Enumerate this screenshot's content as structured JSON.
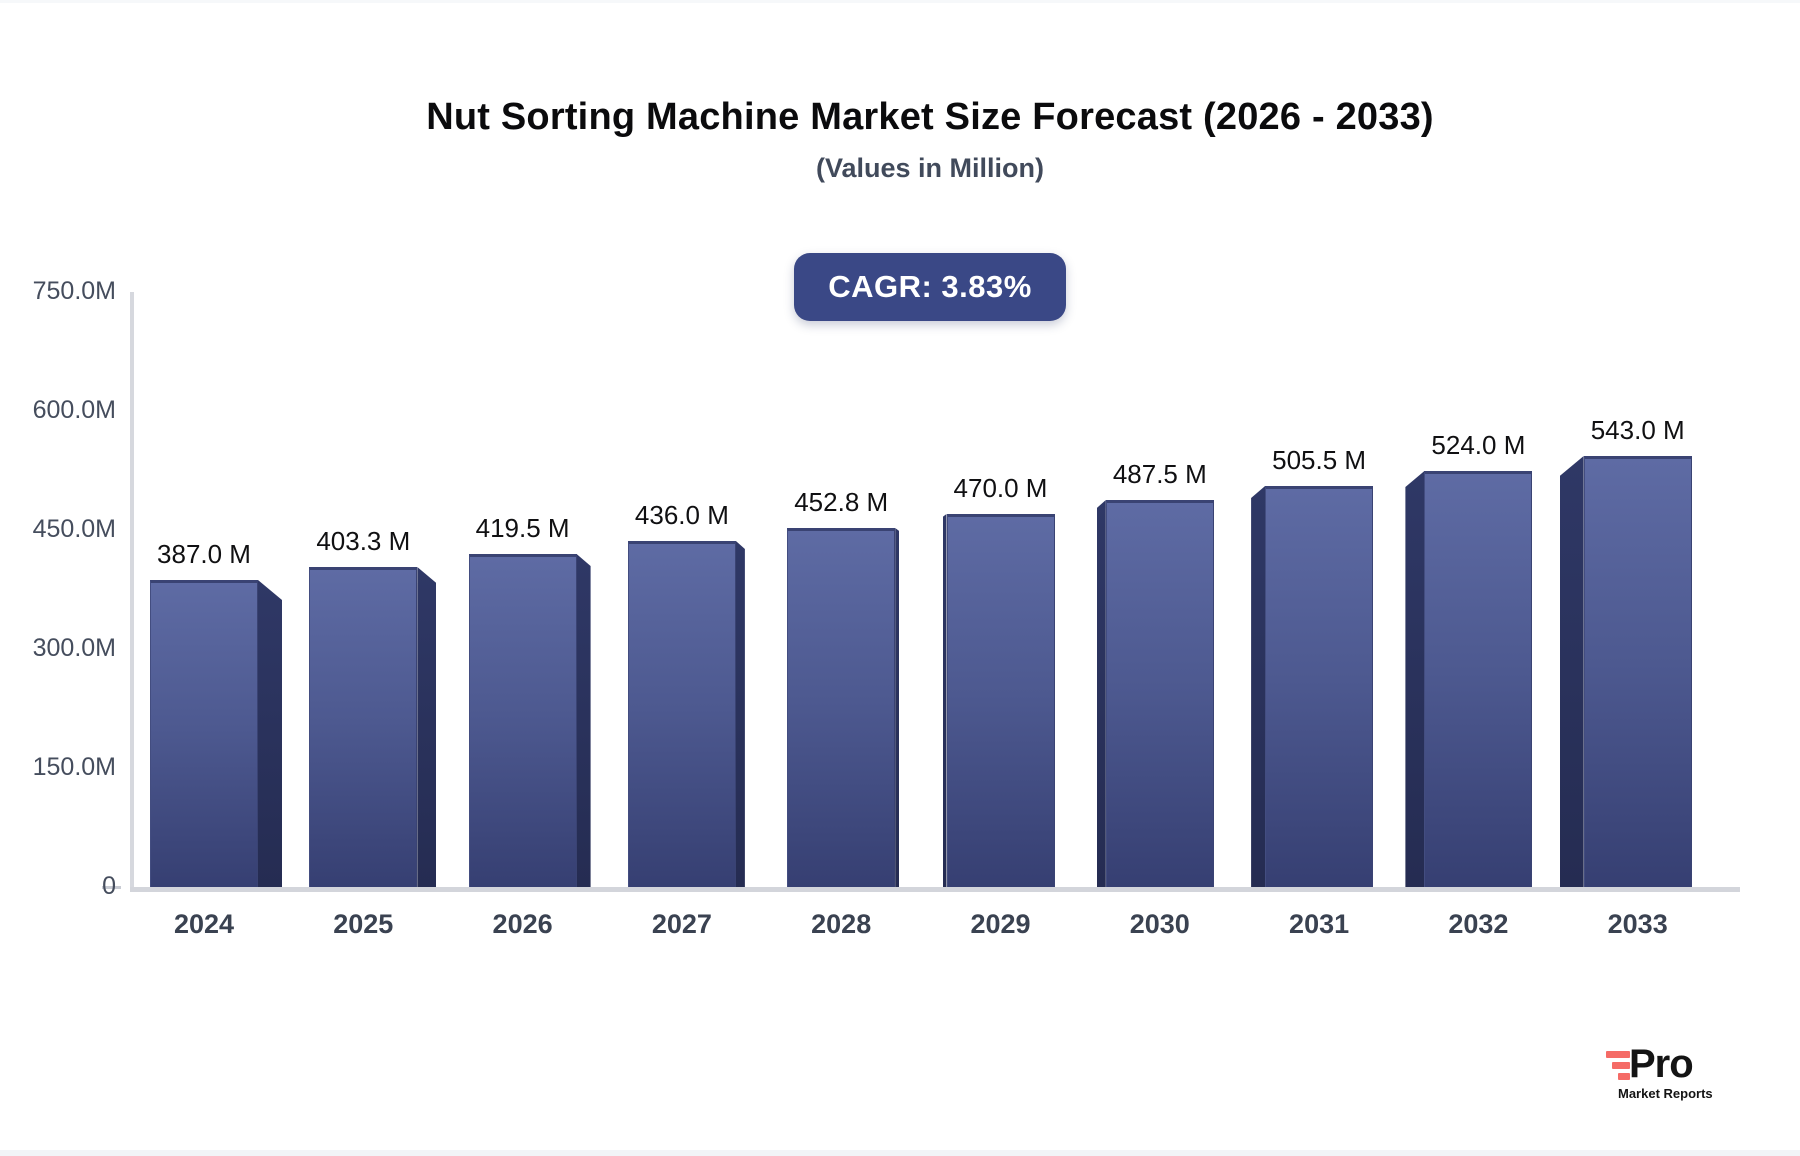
{
  "title": "Nut Sorting Machine Market Size Forecast (2026 - 2033)",
  "subtitle": "(Values in Million)",
  "cagr_badge": "CAGR: 3.83%",
  "chart_data": {
    "type": "bar",
    "title": "Nut Sorting Machine Market Size Forecast (2026 - 2033)",
    "xlabel": "",
    "ylabel": "Values in Million",
    "categories": [
      "2024",
      "2025",
      "2026",
      "2027",
      "2028",
      "2029",
      "2030",
      "2031",
      "2032",
      "2033"
    ],
    "values": [
      387.0,
      403.3,
      419.5,
      436.0,
      452.8,
      470.0,
      487.5,
      505.5,
      524.0,
      543.0
    ],
    "value_labels": [
      "387.0 M",
      "403.3 M",
      "419.5 M",
      "436.0 M",
      "452.8 M",
      "470.0 M",
      "487.5 M",
      "505.5 M",
      "524.0 M",
      "543.0 M"
    ],
    "ylim": [
      0,
      750
    ],
    "y_ticks": [
      "0",
      "150.0M",
      "300.0M",
      "450.0M",
      "600.0M",
      "750.0M"
    ],
    "grid": false,
    "legend": false
  },
  "colors": {
    "bar_gradient_top": "#5e6ba4",
    "bar_gradient_bottom": "#363f72",
    "bar_side": "#2a325c",
    "badge_bg": "#3a4886",
    "badge_text": "#ffffff",
    "axis_line": "#d3d5db",
    "logo_red": "#f56b66"
  },
  "logo": {
    "name": "Pro",
    "tagline": "Market Reports"
  }
}
